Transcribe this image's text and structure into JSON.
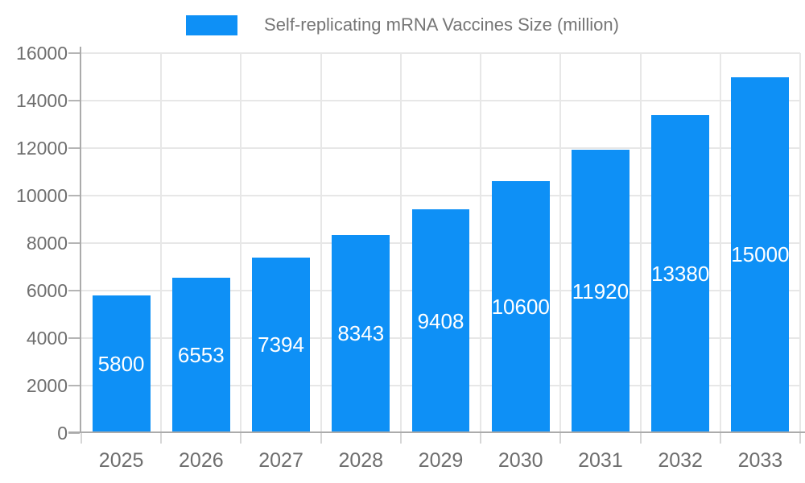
{
  "chart_data": {
    "type": "bar",
    "title": "Self-replicating mRNA Vaccines Size (million)",
    "categories": [
      "2025",
      "2026",
      "2027",
      "2028",
      "2029",
      "2030",
      "2031",
      "2032",
      "2033"
    ],
    "series": [
      {
        "name": "Self-replicating mRNA Vaccines Size (million)",
        "values": [
          5800,
          6553,
          7394,
          8343,
          9408,
          10600,
          11920,
          13380,
          15000
        ]
      }
    ],
    "values": [
      5800,
      6553,
      7394,
      8343,
      9408,
      10600,
      11920,
      13380,
      15000
    ],
    "value_labels": [
      5800,
      6553,
      7394,
      8343,
      9408,
      10600,
      11920,
      13380,
      15000
    ],
    "value_label_position": "inside-center",
    "xlabel": "",
    "ylabel": "",
    "ylim": [
      0,
      16000
    ],
    "y_ticks": [
      0,
      2000,
      4000,
      6000,
      8000,
      10000,
      12000,
      14000,
      16000
    ],
    "grid": "on",
    "legend_position": "top-center",
    "colors": {
      "bar": "#0e90f6",
      "grid": "#e7e7e7",
      "axis": "#ababab",
      "x_tick_mark": "#d6d6d6",
      "y_tick_mark": "#b5b5b5",
      "tick_label": "#6e6e6e",
      "title_text": "#757575",
      "value_label": "#ffffff",
      "background": "#ffffff"
    }
  }
}
